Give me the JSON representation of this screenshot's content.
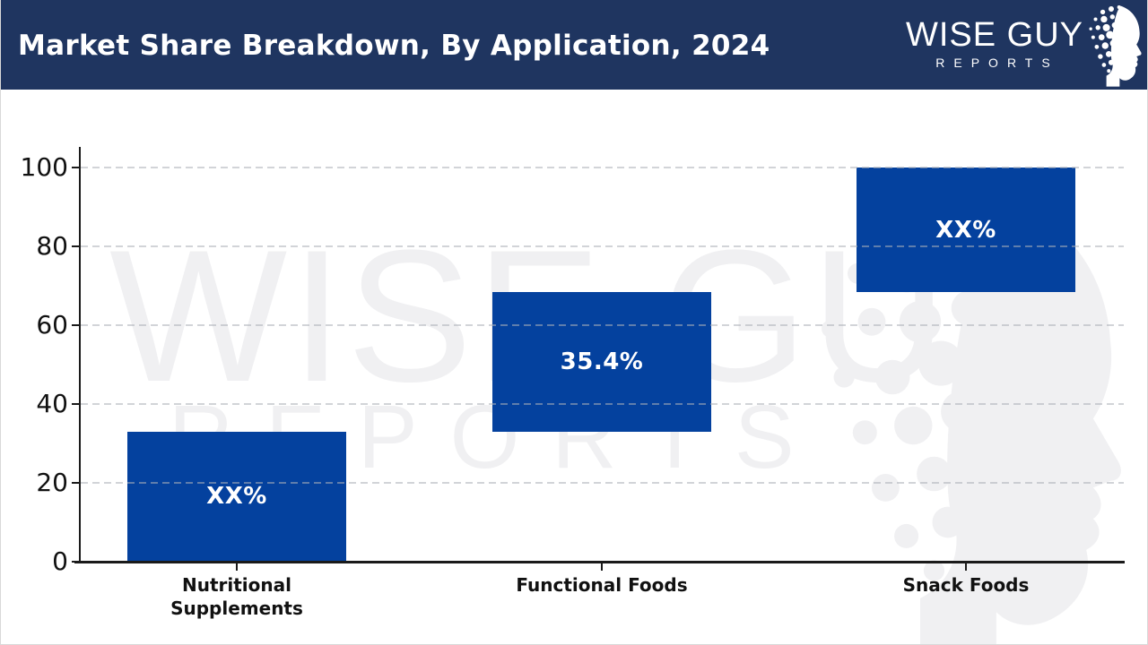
{
  "header": {
    "title": "Market Share Breakdown, By Application, 2024",
    "logo": {
      "brand": "WISE GUY",
      "sub": "REPORTS"
    }
  },
  "watermark": {
    "brand": "WISE GUY",
    "sub": "REPORTS"
  },
  "chart_data": {
    "type": "bar",
    "subtype": "stacked-waterfall-segments",
    "title": "Market Share Breakdown, By Application, 2024",
    "categories": [
      "Nutritional\nSupplements",
      "Functional Foods",
      "Snack Foods"
    ],
    "bars": [
      {
        "category": "Nutritional Supplements",
        "start": 0,
        "end": 33,
        "value_label": "XX%"
      },
      {
        "category": "Functional Foods",
        "start": 33,
        "end": 68.4,
        "value_label": "35.4%"
      },
      {
        "category": "Snack Foods",
        "start": 68.4,
        "end": 100,
        "value_label": "XX%"
      }
    ],
    "yticks": [
      0,
      20,
      40,
      60,
      80,
      100
    ],
    "ylim": [
      0,
      105
    ],
    "xlabel": "",
    "ylabel": "",
    "grid": "horizontal-dashed",
    "legend": "none",
    "bar_color": "#04419e",
    "bar_label_color": "#ffffff",
    "header_color": "#1f3560",
    "background": "#ffffff"
  }
}
